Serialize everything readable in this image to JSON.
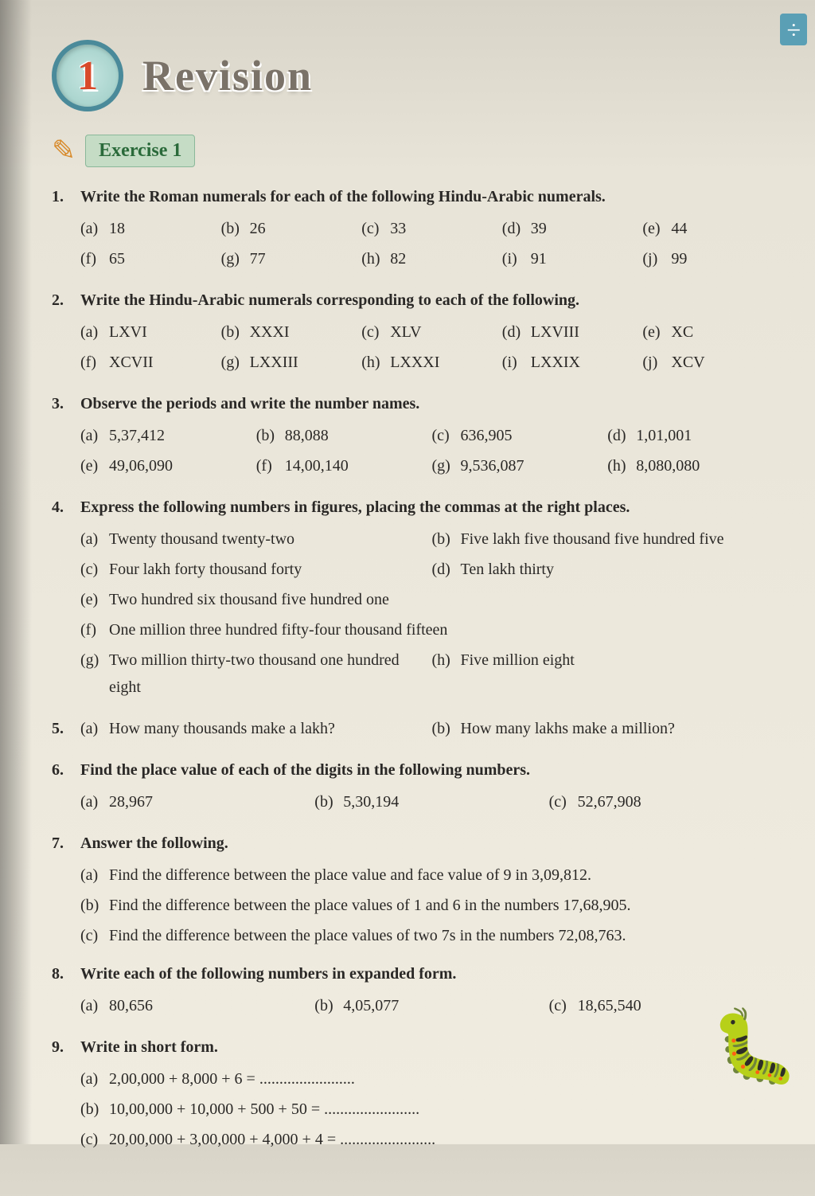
{
  "header": {
    "chapter_number": "1",
    "title": "Revision",
    "exercise_label": "Exercise 1"
  },
  "colors": {
    "badge_border": "#4a8a9a",
    "badge_number": "#d84a2a",
    "title_text": "#7a7268",
    "exercise_bg": "#c5dcc5",
    "exercise_text": "#2a6a3a"
  },
  "questions": [
    {
      "num": "1.",
      "text": "Write the Roman numerals for each of the following Hindu-Arabic numerals.",
      "cols": 5,
      "opts": [
        {
          "l": "(a)",
          "v": "18"
        },
        {
          "l": "(b)",
          "v": "26"
        },
        {
          "l": "(c)",
          "v": "33"
        },
        {
          "l": "(d)",
          "v": "39"
        },
        {
          "l": "(e)",
          "v": "44"
        },
        {
          "l": "(f)",
          "v": "65"
        },
        {
          "l": "(g)",
          "v": "77"
        },
        {
          "l": "(h)",
          "v": "82"
        },
        {
          "l": "(i)",
          "v": "91"
        },
        {
          "l": "(j)",
          "v": "99"
        }
      ]
    },
    {
      "num": "2.",
      "text": "Write the Hindu-Arabic numerals corresponding to each of the following.",
      "cols": 5,
      "opts": [
        {
          "l": "(a)",
          "v": "LXVI"
        },
        {
          "l": "(b)",
          "v": "XXXI"
        },
        {
          "l": "(c)",
          "v": "XLV"
        },
        {
          "l": "(d)",
          "v": "LXVIII"
        },
        {
          "l": "(e)",
          "v": "XC"
        },
        {
          "l": "(f)",
          "v": "XCVII"
        },
        {
          "l": "(g)",
          "v": "LXXIII"
        },
        {
          "l": "(h)",
          "v": "LXXXI"
        },
        {
          "l": "(i)",
          "v": "LXXIX"
        },
        {
          "l": "(j)",
          "v": "XCV"
        }
      ]
    },
    {
      "num": "3.",
      "text": "Observe the periods and write the number names.",
      "cols": 4,
      "opts": [
        {
          "l": "(a)",
          "v": "5,37,412"
        },
        {
          "l": "(b)",
          "v": "88,088"
        },
        {
          "l": "(c)",
          "v": "636,905"
        },
        {
          "l": "(d)",
          "v": "1,01,001"
        },
        {
          "l": "(e)",
          "v": "49,06,090"
        },
        {
          "l": "(f)",
          "v": "14,00,140"
        },
        {
          "l": "(g)",
          "v": "9,536,087"
        },
        {
          "l": "(h)",
          "v": "8,080,080"
        }
      ]
    },
    {
      "num": "4.",
      "text": "Express the following numbers in figures, placing the commas at the right places.",
      "mixed": true,
      "opts": [
        {
          "l": "(a)",
          "v": "Twenty thousand twenty-two",
          "w": "w2"
        },
        {
          "l": "(b)",
          "v": "Five lakh five thousand five hundred five",
          "w": "w2"
        },
        {
          "l": "(c)",
          "v": "Four lakh forty thousand forty",
          "w": "w2"
        },
        {
          "l": "(d)",
          "v": "Ten lakh thirty",
          "w": "w2"
        },
        {
          "l": "(e)",
          "v": "Two hundred six thousand five hundred one",
          "w": "full"
        },
        {
          "l": "(f)",
          "v": "One million three hundred fifty-four thousand fifteen",
          "w": "full"
        },
        {
          "l": "(g)",
          "v": "Two million thirty-two thousand one hundred eight",
          "w": "w2"
        },
        {
          "l": "(h)",
          "v": "Five million eight",
          "w": "w2"
        }
      ]
    },
    {
      "num": "5.",
      "inline": true,
      "opts": [
        {
          "l": "(a)",
          "v": "How many thousands make a lakh?",
          "w": "w2"
        },
        {
          "l": "(b)",
          "v": "How many lakhs make a million?",
          "w": "w2"
        }
      ]
    },
    {
      "num": "6.",
      "text": "Find the place value of each of the digits in the following numbers.",
      "cols": 3,
      "opts": [
        {
          "l": "(a)",
          "v": "28,967"
        },
        {
          "l": "(b)",
          "v": "5,30,194"
        },
        {
          "l": "(c)",
          "v": "52,67,908"
        }
      ]
    },
    {
      "num": "7.",
      "text": "Answer the following.",
      "sub": true,
      "opts": [
        {
          "l": "(a)",
          "v": "Find the difference between the place value and face value of 9 in 3,09,812."
        },
        {
          "l": "(b)",
          "v": "Find the difference between the place values of 1 and 6 in the numbers 17,68,905."
        },
        {
          "l": "(c)",
          "v": "Find the difference between the place values of two 7s in the numbers 72,08,763."
        }
      ]
    },
    {
      "num": "8.",
      "text": "Write each of the following numbers in expanded form.",
      "cols": 3,
      "opts": [
        {
          "l": "(a)",
          "v": "80,656"
        },
        {
          "l": "(b)",
          "v": "4,05,077"
        },
        {
          "l": "(c)",
          "v": "18,65,540"
        }
      ]
    },
    {
      "num": "9.",
      "text": "Write in short form.",
      "sub": true,
      "opts": [
        {
          "l": "(a)",
          "v": "2,00,000 + 8,000 + 6 = ........................"
        },
        {
          "l": "(b)",
          "v": "10,00,000 + 10,000 + 500 + 50 = ........................"
        },
        {
          "l": "(c)",
          "v": "20,00,000 + 3,00,000 + 4,000 + 4 = ........................"
        }
      ]
    }
  ]
}
